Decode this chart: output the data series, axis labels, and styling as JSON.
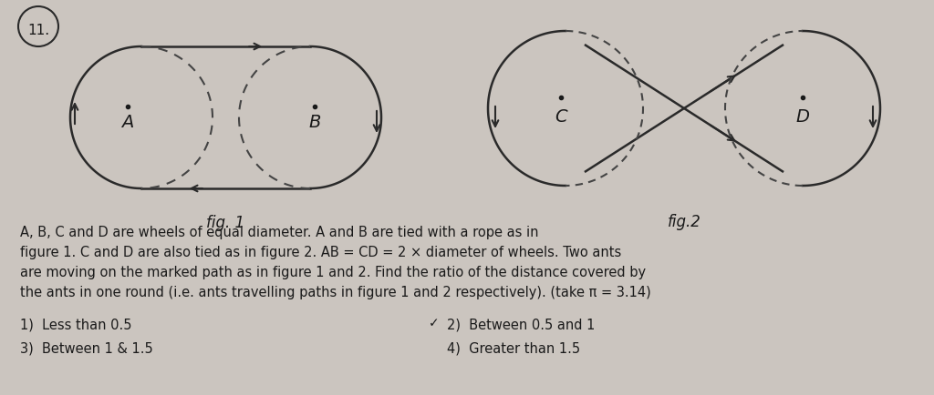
{
  "bg_color": "#cbc5bf",
  "circle_color": "#2a2a2a",
  "dashed_color": "#444444",
  "label_color": "#1a1a1a",
  "fig1_label": "fig. 1",
  "fig2_label": "fig.2",
  "question_text_lines": [
    "A, B, C and D are wheels of equal diameter. A and B are tied with a rope as in",
    "figure 1. C and D are also tied as in figure 2. AB = CD = 2 × diameter of wheels. Two ants",
    "are moving on the marked path as in figure 1 and 2. Find the ratio of the distance covered by",
    "the ants in one round (i.e. ants travelling paths in figure 1 and 2 respectively). (take π = 3.14)"
  ],
  "option1": "1)  Less than 0.5",
  "option2": "2)  Between 0.5 and 1",
  "option3": "3)  Between 1 & 1.5",
  "option4": "4)  Greater than 1.5"
}
